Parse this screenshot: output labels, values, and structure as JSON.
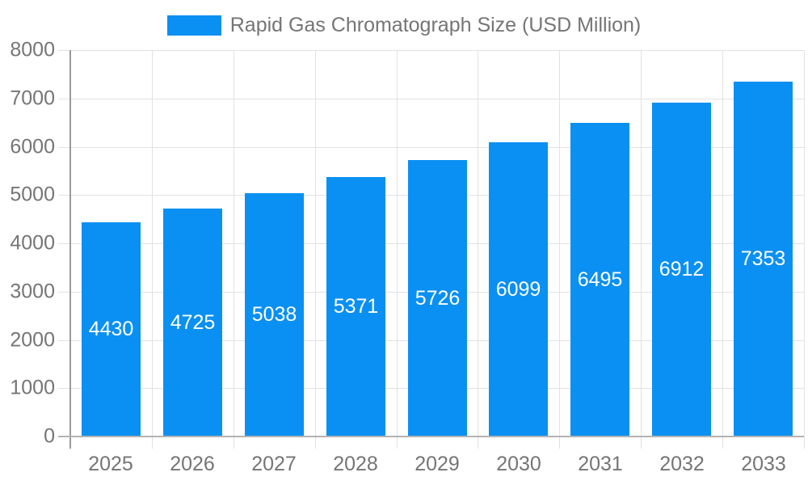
{
  "legend": {
    "label": "Rapid Gas Chromatograph Size (USD Million)"
  },
  "colors": {
    "bar": "#0a90f2",
    "grid": "#e2e2e2",
    "y_axis_line": "#9a9a9a",
    "x_axis_line": "#b3b3b3",
    "axis_text": "#757575",
    "value_text": "#ffffff",
    "background": "#ffffff"
  },
  "chart_data": {
    "type": "bar",
    "title": "Rapid Gas Chromatograph Size (USD Million)",
    "series_name": "Rapid Gas Chromatograph Size (USD Million)",
    "categories": [
      "2025",
      "2026",
      "2027",
      "2028",
      "2029",
      "2030",
      "2031",
      "2032",
      "2033"
    ],
    "values": [
      4430,
      4725,
      5038,
      5371,
      5726,
      6099,
      6495,
      6912,
      7353
    ],
    "xlabel": "",
    "ylabel": "",
    "ylim": [
      0,
      8000
    ],
    "ytick_interval": 1000,
    "yticks": [
      0,
      1000,
      2000,
      3000,
      4000,
      5000,
      6000,
      7000,
      8000
    ],
    "grid": true,
    "legend_position": "top-center",
    "value_labels": "inside-center"
  }
}
